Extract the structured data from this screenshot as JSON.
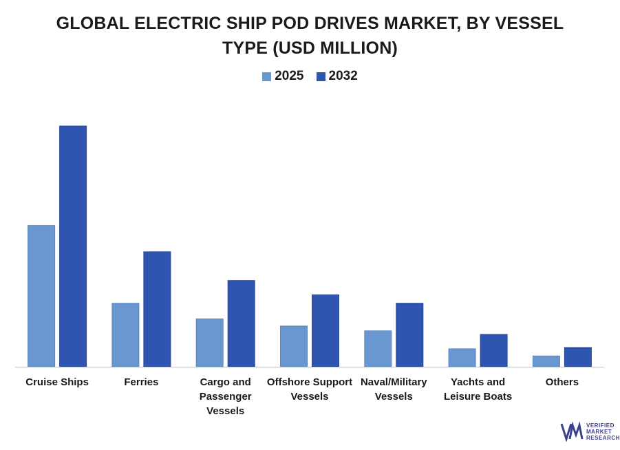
{
  "title_line1": "GLOBAL ELECTRIC SHIP POD DRIVES MARKET, BY VESSEL",
  "title_line2": "TYPE (USD MILLION)",
  "legend": [
    {
      "label": "2025",
      "color": "#6b97d1"
    },
    {
      "label": "2032",
      "color": "#2f55b0"
    }
  ],
  "brand": {
    "line1": "VERIFIED",
    "line2": "MARKET",
    "line3": "RESEARCH",
    "mark": "®"
  },
  "chart_data": {
    "type": "bar",
    "title": "GLOBAL ELECTRIC SHIP POD DRIVES MARKET, BY VESSEL TYPE (USD MILLION)",
    "categories": [
      [
        "Cruise Ships"
      ],
      [
        "Ferries"
      ],
      [
        "Cargo and",
        "Passenger",
        "Vessels"
      ],
      [
        "Offshore Support",
        "Vessels"
      ],
      [
        "Naval/Military",
        "Vessels"
      ],
      [
        "Yachts and",
        "Leisure Boats"
      ],
      [
        "Others"
      ]
    ],
    "series": [
      {
        "name": "2025",
        "color": "#6b97d1",
        "values": [
          59,
          26.5,
          20,
          17,
          15,
          7.5,
          4.5
        ]
      },
      {
        "name": "2032",
        "color": "#2f55b0",
        "values": [
          100.5,
          48,
          36,
          30,
          26.5,
          13.5,
          8
        ]
      }
    ],
    "xlabel": "",
    "ylabel": "",
    "ylim": [
      0,
      110
    ],
    "grid": false,
    "legend_position": "top-center"
  }
}
